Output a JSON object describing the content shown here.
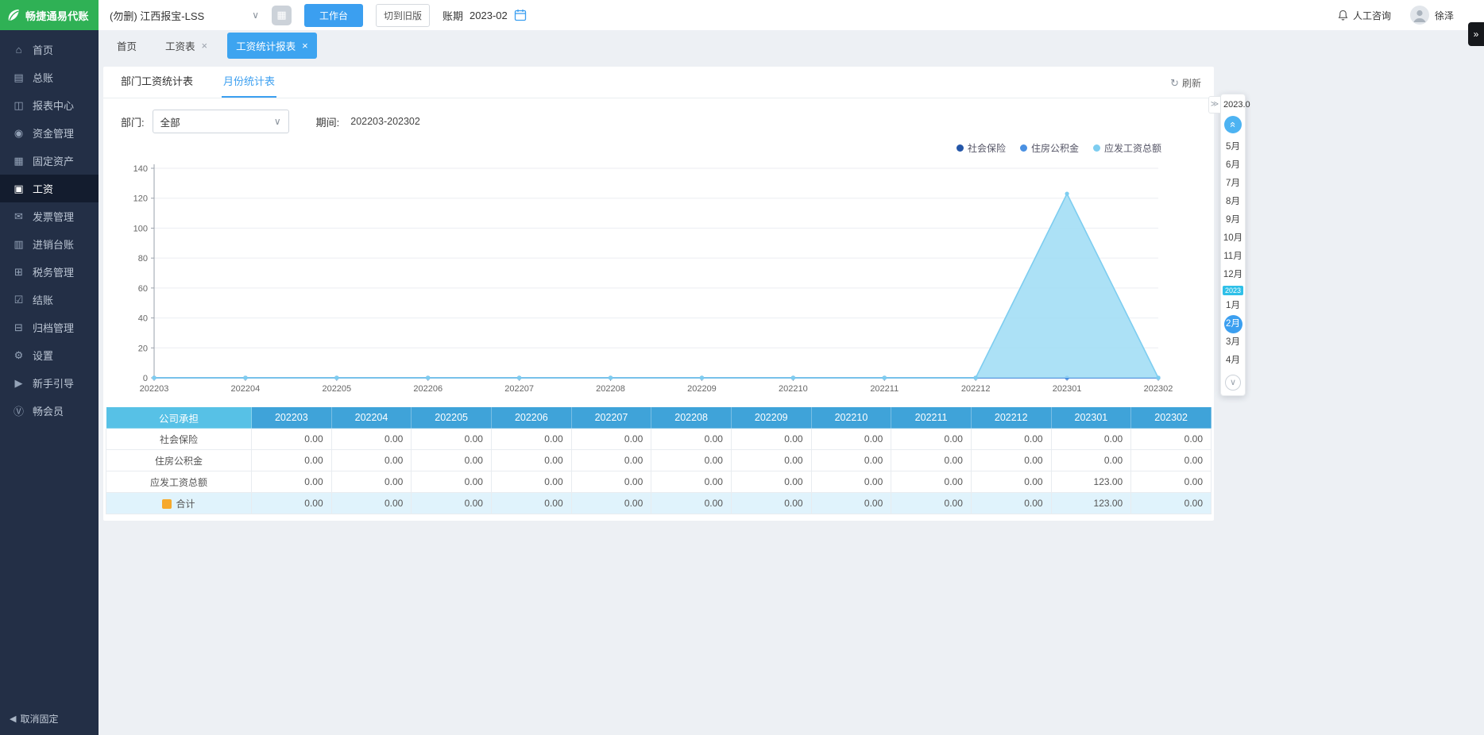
{
  "app": {
    "logo_text": "畅捷通易代账",
    "unpin_label": "取消固定"
  },
  "sidebar": {
    "items": [
      {
        "label": "首页",
        "icon": "home-icon",
        "active": false
      },
      {
        "label": "总账",
        "icon": "general-ledger-icon",
        "active": false
      },
      {
        "label": "报表中心",
        "icon": "report-center-icon",
        "active": false
      },
      {
        "label": "资金管理",
        "icon": "fund-management-icon",
        "active": false
      },
      {
        "label": "固定资产",
        "icon": "fixed-assets-icon",
        "active": false
      },
      {
        "label": "工资",
        "icon": "salary-icon",
        "active": true
      },
      {
        "label": "发票管理",
        "icon": "invoice-icon",
        "active": false
      },
      {
        "label": "进销台账",
        "icon": "purchase-sales-ledger-icon",
        "active": false
      },
      {
        "label": "税务管理",
        "icon": "tax-management-icon",
        "active": false
      },
      {
        "label": "结账",
        "icon": "closing-icon",
        "active": false
      },
      {
        "label": "归档管理",
        "icon": "archive-icon",
        "active": false
      },
      {
        "label": "设置",
        "icon": "settings-icon",
        "active": false
      },
      {
        "label": "新手引导",
        "icon": "guide-icon",
        "active": false
      },
      {
        "label": "畅会员",
        "icon": "member-icon",
        "active": false
      }
    ]
  },
  "topbar": {
    "company_selector": "(勿删) 江西报宝-LSS",
    "workbench_button": "工作台",
    "switch_old_button": "切到旧版",
    "period_label": "账期",
    "period_value": "2023-02",
    "consult_label": "人工咨询",
    "username": "徐泽"
  },
  "tabs": [
    {
      "name": "home",
      "label": "首页",
      "closable": false,
      "active": false
    },
    {
      "name": "salary-sheet",
      "label": "工资表",
      "closable": true,
      "active": false
    },
    {
      "name": "salary-statistics-report",
      "label": "工资统计报表",
      "closable": true,
      "active": true
    }
  ],
  "panel": {
    "subtabs": [
      {
        "name": "department-salary-stats",
        "label": "部门工资统计表",
        "active": false
      },
      {
        "name": "monthly-stats",
        "label": "月份统计表",
        "active": true
      }
    ],
    "refresh_label": "刷新",
    "filters": {
      "department_label": "部门:",
      "department_value": "全部",
      "period_label": "期间:",
      "period_value": "202203-202302"
    }
  },
  "chart_data": {
    "type": "area",
    "x": [
      "202203",
      "202204",
      "202205",
      "202206",
      "202207",
      "202208",
      "202209",
      "202210",
      "202211",
      "202212",
      "202301",
      "202302"
    ],
    "series": [
      {
        "name": "社会保险",
        "color": "#2456a8",
        "fill": false,
        "values": [
          0,
          0,
          0,
          0,
          0,
          0,
          0,
          0,
          0,
          0,
          0,
          0
        ]
      },
      {
        "name": "住房公积金",
        "color": "#4a90e2",
        "fill": false,
        "values": [
          0,
          0,
          0,
          0,
          0,
          0,
          0,
          0,
          0,
          0,
          0,
          0
        ]
      },
      {
        "name": "应发工资总额",
        "color": "#7dcdf0",
        "fill": true,
        "fill_color": "#9edcf5",
        "values": [
          0,
          0,
          0,
          0,
          0,
          0,
          0,
          0,
          0,
          0,
          123,
          0
        ]
      }
    ],
    "ylim": [
      0,
      140
    ],
    "ytick": 20,
    "grid": true,
    "legend_position": "top-right"
  },
  "table": {
    "header": [
      "公司承担",
      "202203",
      "202204",
      "202205",
      "202206",
      "202207",
      "202208",
      "202209",
      "202210",
      "202211",
      "202212",
      "202301",
      "202302"
    ],
    "rows": [
      {
        "label": "社会保险",
        "is_total": false,
        "values": [
          "0.00",
          "0.00",
          "0.00",
          "0.00",
          "0.00",
          "0.00",
          "0.00",
          "0.00",
          "0.00",
          "0.00",
          "0.00",
          "0.00"
        ]
      },
      {
        "label": "住房公积金",
        "is_total": false,
        "values": [
          "0.00",
          "0.00",
          "0.00",
          "0.00",
          "0.00",
          "0.00",
          "0.00",
          "0.00",
          "0.00",
          "0.00",
          "0.00",
          "0.00"
        ]
      },
      {
        "label": "应发工资总额",
        "is_total": false,
        "values": [
          "0.00",
          "0.00",
          "0.00",
          "0.00",
          "0.00",
          "0.00",
          "0.00",
          "0.00",
          "0.00",
          "0.00",
          "123.00",
          "0.00"
        ]
      },
      {
        "label": "合计",
        "is_total": true,
        "icon": "sum-icon",
        "values": [
          "0.00",
          "0.00",
          "0.00",
          "0.00",
          "0.00",
          "0.00",
          "0.00",
          "0.00",
          "0.00",
          "0.00",
          "123.00",
          "0.00"
        ]
      }
    ]
  },
  "month_rail": {
    "current": "2023.0",
    "items": [
      {
        "type": "month",
        "label": "5月",
        "selected": false
      },
      {
        "type": "month",
        "label": "6月",
        "selected": false
      },
      {
        "type": "month",
        "label": "7月",
        "selected": false
      },
      {
        "type": "month",
        "label": "8月",
        "selected": false
      },
      {
        "type": "month",
        "label": "9月",
        "selected": false
      },
      {
        "type": "month",
        "label": "10月",
        "selected": false
      },
      {
        "type": "month",
        "label": "11月",
        "selected": false
      },
      {
        "type": "month",
        "label": "12月",
        "selected": false
      },
      {
        "type": "year",
        "label": "2023"
      },
      {
        "type": "month",
        "label": "1月",
        "selected": false
      },
      {
        "type": "month",
        "label": "2月",
        "selected": true
      },
      {
        "type": "month",
        "label": "3月",
        "selected": false
      },
      {
        "type": "month",
        "label": "4月",
        "selected": false
      }
    ]
  },
  "colors": {
    "accent": "#3b9ff0",
    "sidebar_bg": "#232f46",
    "logo_green": "#2fb155",
    "table_header": "#3fa3d9",
    "table_header_first": "#57c1e6",
    "total_row_bg": "#e0f3fc",
    "active_tab": "#3da4f0"
  }
}
